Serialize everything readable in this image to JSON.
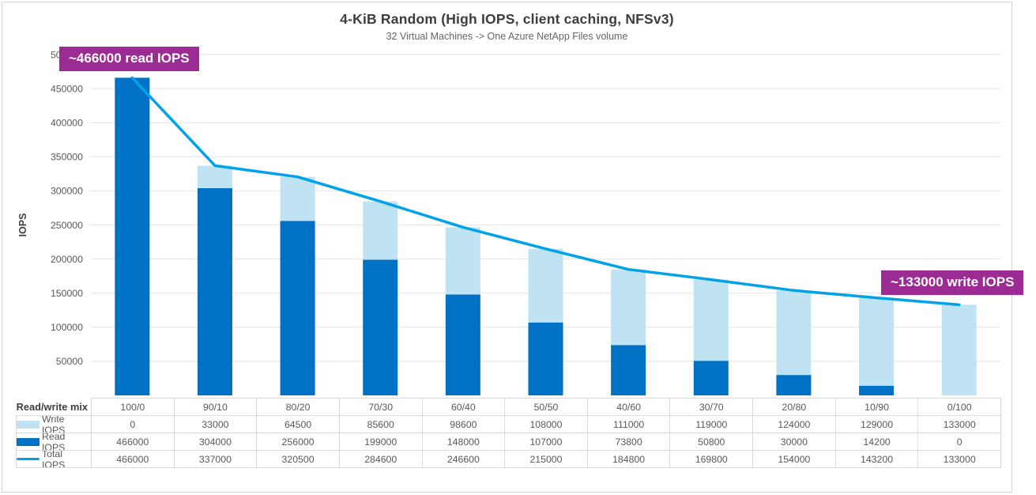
{
  "title": "4-KiB Random (High IOPS, client caching, NFSv3)",
  "subtitle": "32 Virtual Machines -> One Azure NetApp Files volume",
  "ylabel": "IOPS",
  "annotations": {
    "read_peak": "~466000 read IOPS",
    "write_peak": "~133000 write IOPS"
  },
  "colors": {
    "read_bar": "#0072c6",
    "write_bar": "#c0e3f4",
    "total_line": "#00a2e8",
    "annotation_bg": "#9c2c94",
    "grid": "#e2e2e2",
    "table_border": "#d9d9d9"
  },
  "chart_data": {
    "type": "bar",
    "subtype": "stacked-bars-with-total-line",
    "title": "4-KiB Random (High IOPS, client caching, NFSv3)",
    "subtitle": "32 Virtual Machines -> One Azure NetApp Files volume",
    "xlabel": "Read/write mix",
    "ylabel": "IOPS",
    "ylim": [
      0,
      500000
    ],
    "ytick_step": 50000,
    "grid": true,
    "legend_position": "table-left",
    "table_header_label": "Read/write mix",
    "categories": [
      "100/0",
      "90/10",
      "80/20",
      "70/30",
      "60/40",
      "50/50",
      "40/60",
      "30/70",
      "20/80",
      "10/90",
      "0/100"
    ],
    "series": [
      {
        "name": "Write IOPS",
        "type": "bar",
        "stack_order": "top",
        "values": [
          0,
          33000,
          64500,
          85600,
          98600,
          108000,
          111000,
          119000,
          124000,
          129000,
          133000
        ]
      },
      {
        "name": "Read IOPS",
        "type": "bar",
        "stack_order": "bottom",
        "values": [
          466000,
          304000,
          256000,
          199000,
          148000,
          107000,
          73800,
          50800,
          30000,
          14200,
          0
        ]
      },
      {
        "name": "Total IOPS",
        "type": "line",
        "values": [
          466000,
          337000,
          320500,
          284600,
          246600,
          215000,
          184800,
          169800,
          154000,
          143200,
          133000
        ]
      }
    ]
  }
}
